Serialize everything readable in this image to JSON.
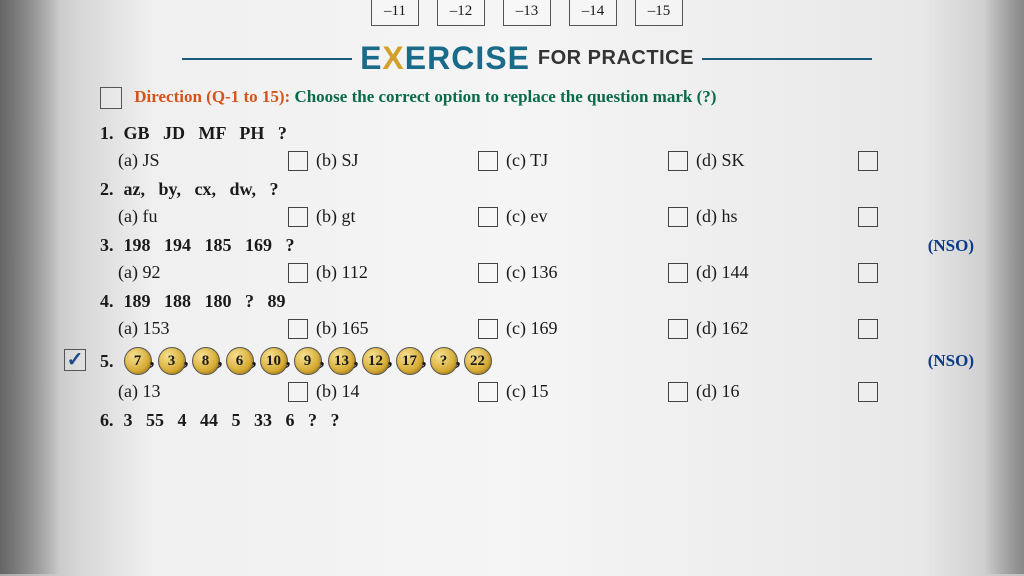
{
  "top_numbers": [
    "–11",
    "–12",
    "–13",
    "–14",
    "–15"
  ],
  "title": {
    "pre": "E",
    "x": "X",
    "post": "ERCISE",
    "sub": "FOR PRACTICE"
  },
  "direction": {
    "label": "Direction (Q-1 to 15):",
    "text": " Choose the correct option to replace the question mark (?)"
  },
  "q1": {
    "num": "1.",
    "prompt": "GB   JD   MF   PH   ?",
    "a": "(a) JS",
    "b": "(b) SJ",
    "c": "(c) TJ",
    "d": "(d) SK"
  },
  "q2": {
    "num": "2.",
    "prompt": "az,   by,   cx,   dw,   ?",
    "a": "(a) fu",
    "b": "(b) gt",
    "c": "(c) ev",
    "d": "(d) hs"
  },
  "q3": {
    "num": "3.",
    "prompt": "198   194   185   169   ?",
    "a": "(a) 92",
    "b": "(b) 112",
    "c": "(c) 136",
    "d": "(d) 144",
    "tag": "(NSO)"
  },
  "q4": {
    "num": "4.",
    "prompt": "189   188   180   ?   89",
    "a": "(a) 153",
    "b": "(b) 165",
    "c": "(c) 169",
    "d": "(d) 162"
  },
  "q5": {
    "num": "5.",
    "circles": [
      "7",
      "3",
      "8",
      "6",
      "10",
      "9",
      "13",
      "12",
      "17",
      "?",
      "22"
    ],
    "a": "(a) 13",
    "b": "(b) 14",
    "c": "(c) 15",
    "d": "(d) 16",
    "tag": "(NSO)"
  },
  "q6": {
    "num": "6.",
    "prompt": "3   55   4   44   5   33   6   ?   ?"
  }
}
